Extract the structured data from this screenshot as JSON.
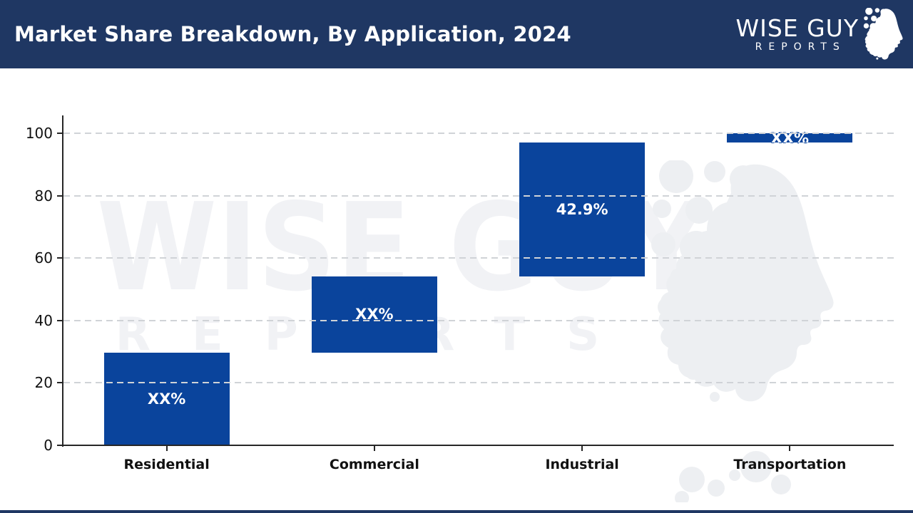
{
  "header": {
    "title": "Market Share Breakdown, By Application, 2024",
    "logo": {
      "line1": "WISE GUY",
      "line2": "REPORTS",
      "icon": "dotted-head-profile-icon"
    }
  },
  "watermark": {
    "line1": "WISE GUY",
    "line2": "REPORTS",
    "icon": "dotted-head-profile-watermark"
  },
  "colors": {
    "header_bg": "#1f3763",
    "footer_bg": "#1f3763",
    "bar": "#0a449c",
    "bar_label": "#ffffff",
    "grid": "#d0d3d7",
    "axis": "#262626",
    "tick_label": "#111111",
    "category_label": "#111111",
    "title_text": "#ffffff",
    "watermark_text": "#f1f2f5",
    "watermark_shape": "#edeff2"
  },
  "chart_data": {
    "type": "bar",
    "subtype": "floating-waterfall",
    "title": "Market Share Breakdown, By Application, 2024",
    "categories": [
      "Residential",
      "Commercial",
      "Industrial",
      "Transportation"
    ],
    "segments": [
      {
        "category": "Residential",
        "start": 0,
        "end": 29.7,
        "label": "XX%"
      },
      {
        "category": "Commercial",
        "start": 29.7,
        "end": 54.1,
        "label": "XX%"
      },
      {
        "category": "Industrial",
        "start": 54.1,
        "end": 97.0,
        "label": "42.9%"
      },
      {
        "category": "Transportation",
        "start": 97.0,
        "end": 100.0,
        "label": "XX%"
      }
    ],
    "ylim": [
      0,
      100
    ],
    "yticks": [
      0,
      20,
      40,
      60,
      80,
      100
    ],
    "xlabel": "",
    "ylabel": "",
    "grid": "horizontal-dashed",
    "legend": "none"
  }
}
